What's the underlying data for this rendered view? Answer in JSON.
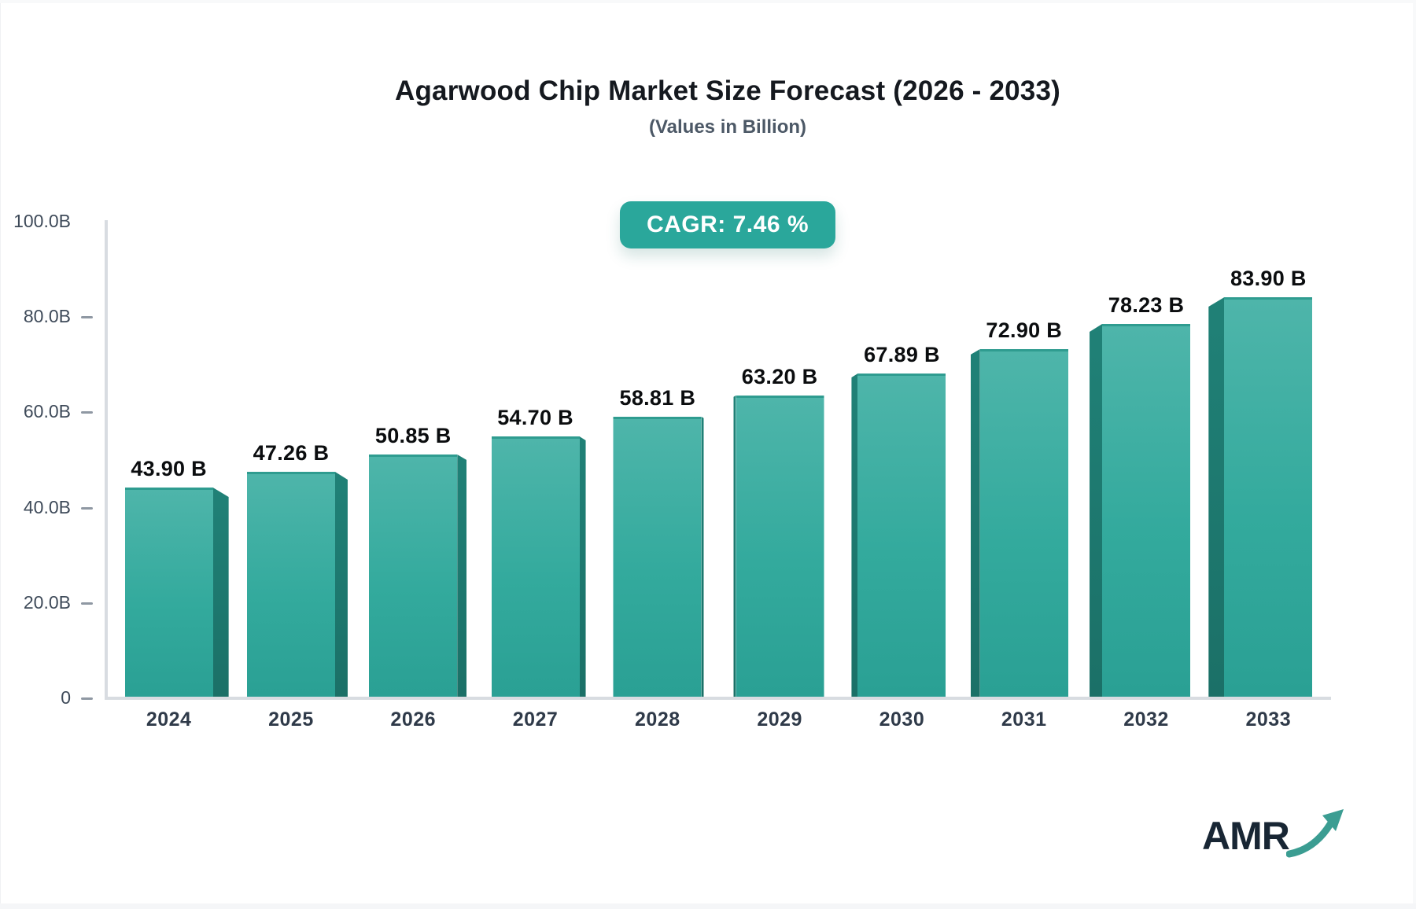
{
  "header": {
    "title": "Agarwood Chip Market Size Forecast (2026 - 2033)",
    "subtitle": "(Values in Billion)",
    "cagr_badge": "CAGR: 7.46 %"
  },
  "chart_data": {
    "type": "bar",
    "title": "Agarwood Chip Market Size Forecast (2026 - 2033)",
    "subtitle": "(Values in Billion)",
    "categories": [
      "2024",
      "2025",
      "2026",
      "2027",
      "2028",
      "2029",
      "2030",
      "2031",
      "2032",
      "2033"
    ],
    "values": [
      43.9,
      47.26,
      50.85,
      54.7,
      58.81,
      63.2,
      67.89,
      72.9,
      78.23,
      83.9
    ],
    "value_labels": [
      "43.90 B",
      "47.26 B",
      "50.85 B",
      "54.70 B",
      "58.81 B",
      "63.20 B",
      "67.89 B",
      "72.90 B",
      "78.23 B",
      "83.90 B"
    ],
    "cagr_label": "CAGR: 7.46 %",
    "ylim": [
      0,
      100
    ],
    "y_ticks": [
      {
        "label": "100.0B",
        "value": 100,
        "dash": false
      },
      {
        "label": "80.0B",
        "value": 80,
        "dash": true
      },
      {
        "label": "60.0B",
        "value": 60,
        "dash": true
      },
      {
        "label": "40.0B",
        "value": 40,
        "dash": true
      },
      {
        "label": "20.0B",
        "value": 20,
        "dash": true
      },
      {
        "label": "0",
        "value": 0,
        "dash": true
      }
    ],
    "grid": false,
    "legend": false,
    "bar_color_top": "#4eb5aa",
    "bar_color_bottom": "#2aa094",
    "bar_side_color": "#1e7c72",
    "accent_color": "#2aa79b",
    "axis_color": "#d8dce1",
    "label_color": "#3e4a59"
  },
  "logo": {
    "text": "AMR"
  }
}
